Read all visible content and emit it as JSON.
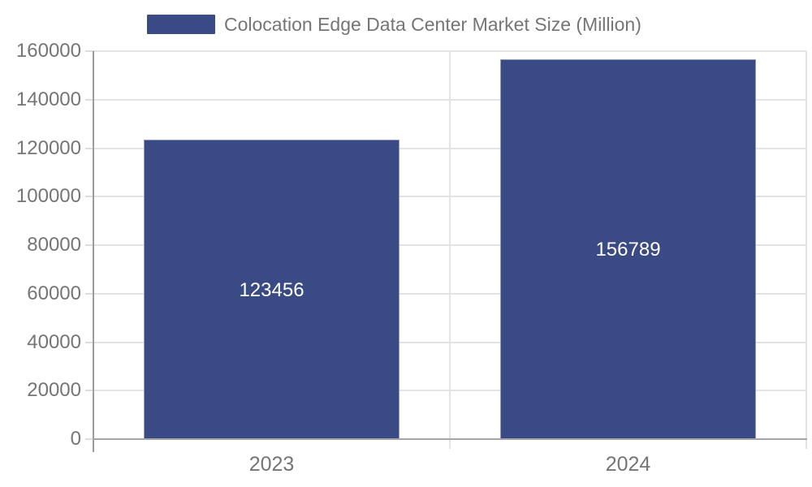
{
  "legend": {
    "label": "Colocation Edge Data Center Market Size (Million)"
  },
  "chart_data": {
    "type": "bar",
    "title": "Colocation Edge Data Center Market Size (Million)",
    "categories": [
      "2023",
      "2024"
    ],
    "series": [
      {
        "name": "Colocation Edge Data Center Market Size (Million)",
        "values": [
          123456,
          156789
        ]
      }
    ],
    "value_labels": [
      "123456",
      "156789"
    ],
    "xlabel": "",
    "ylabel": "",
    "y_axis": {
      "min": 0,
      "max": 160000,
      "step": 20000,
      "tick_labels": [
        "0",
        "20000",
        "40000",
        "60000",
        "80000",
        "100000",
        "120000",
        "140000",
        "160000"
      ]
    },
    "grid": true,
    "legend_position": "top-left",
    "colors": {
      "bar": "#3a4a85",
      "grid": "#e2e2e7",
      "axis": "#9b9b9b",
      "tick_text": "#757575",
      "value_text": "#ffffff",
      "legend_text": "#757575"
    }
  }
}
